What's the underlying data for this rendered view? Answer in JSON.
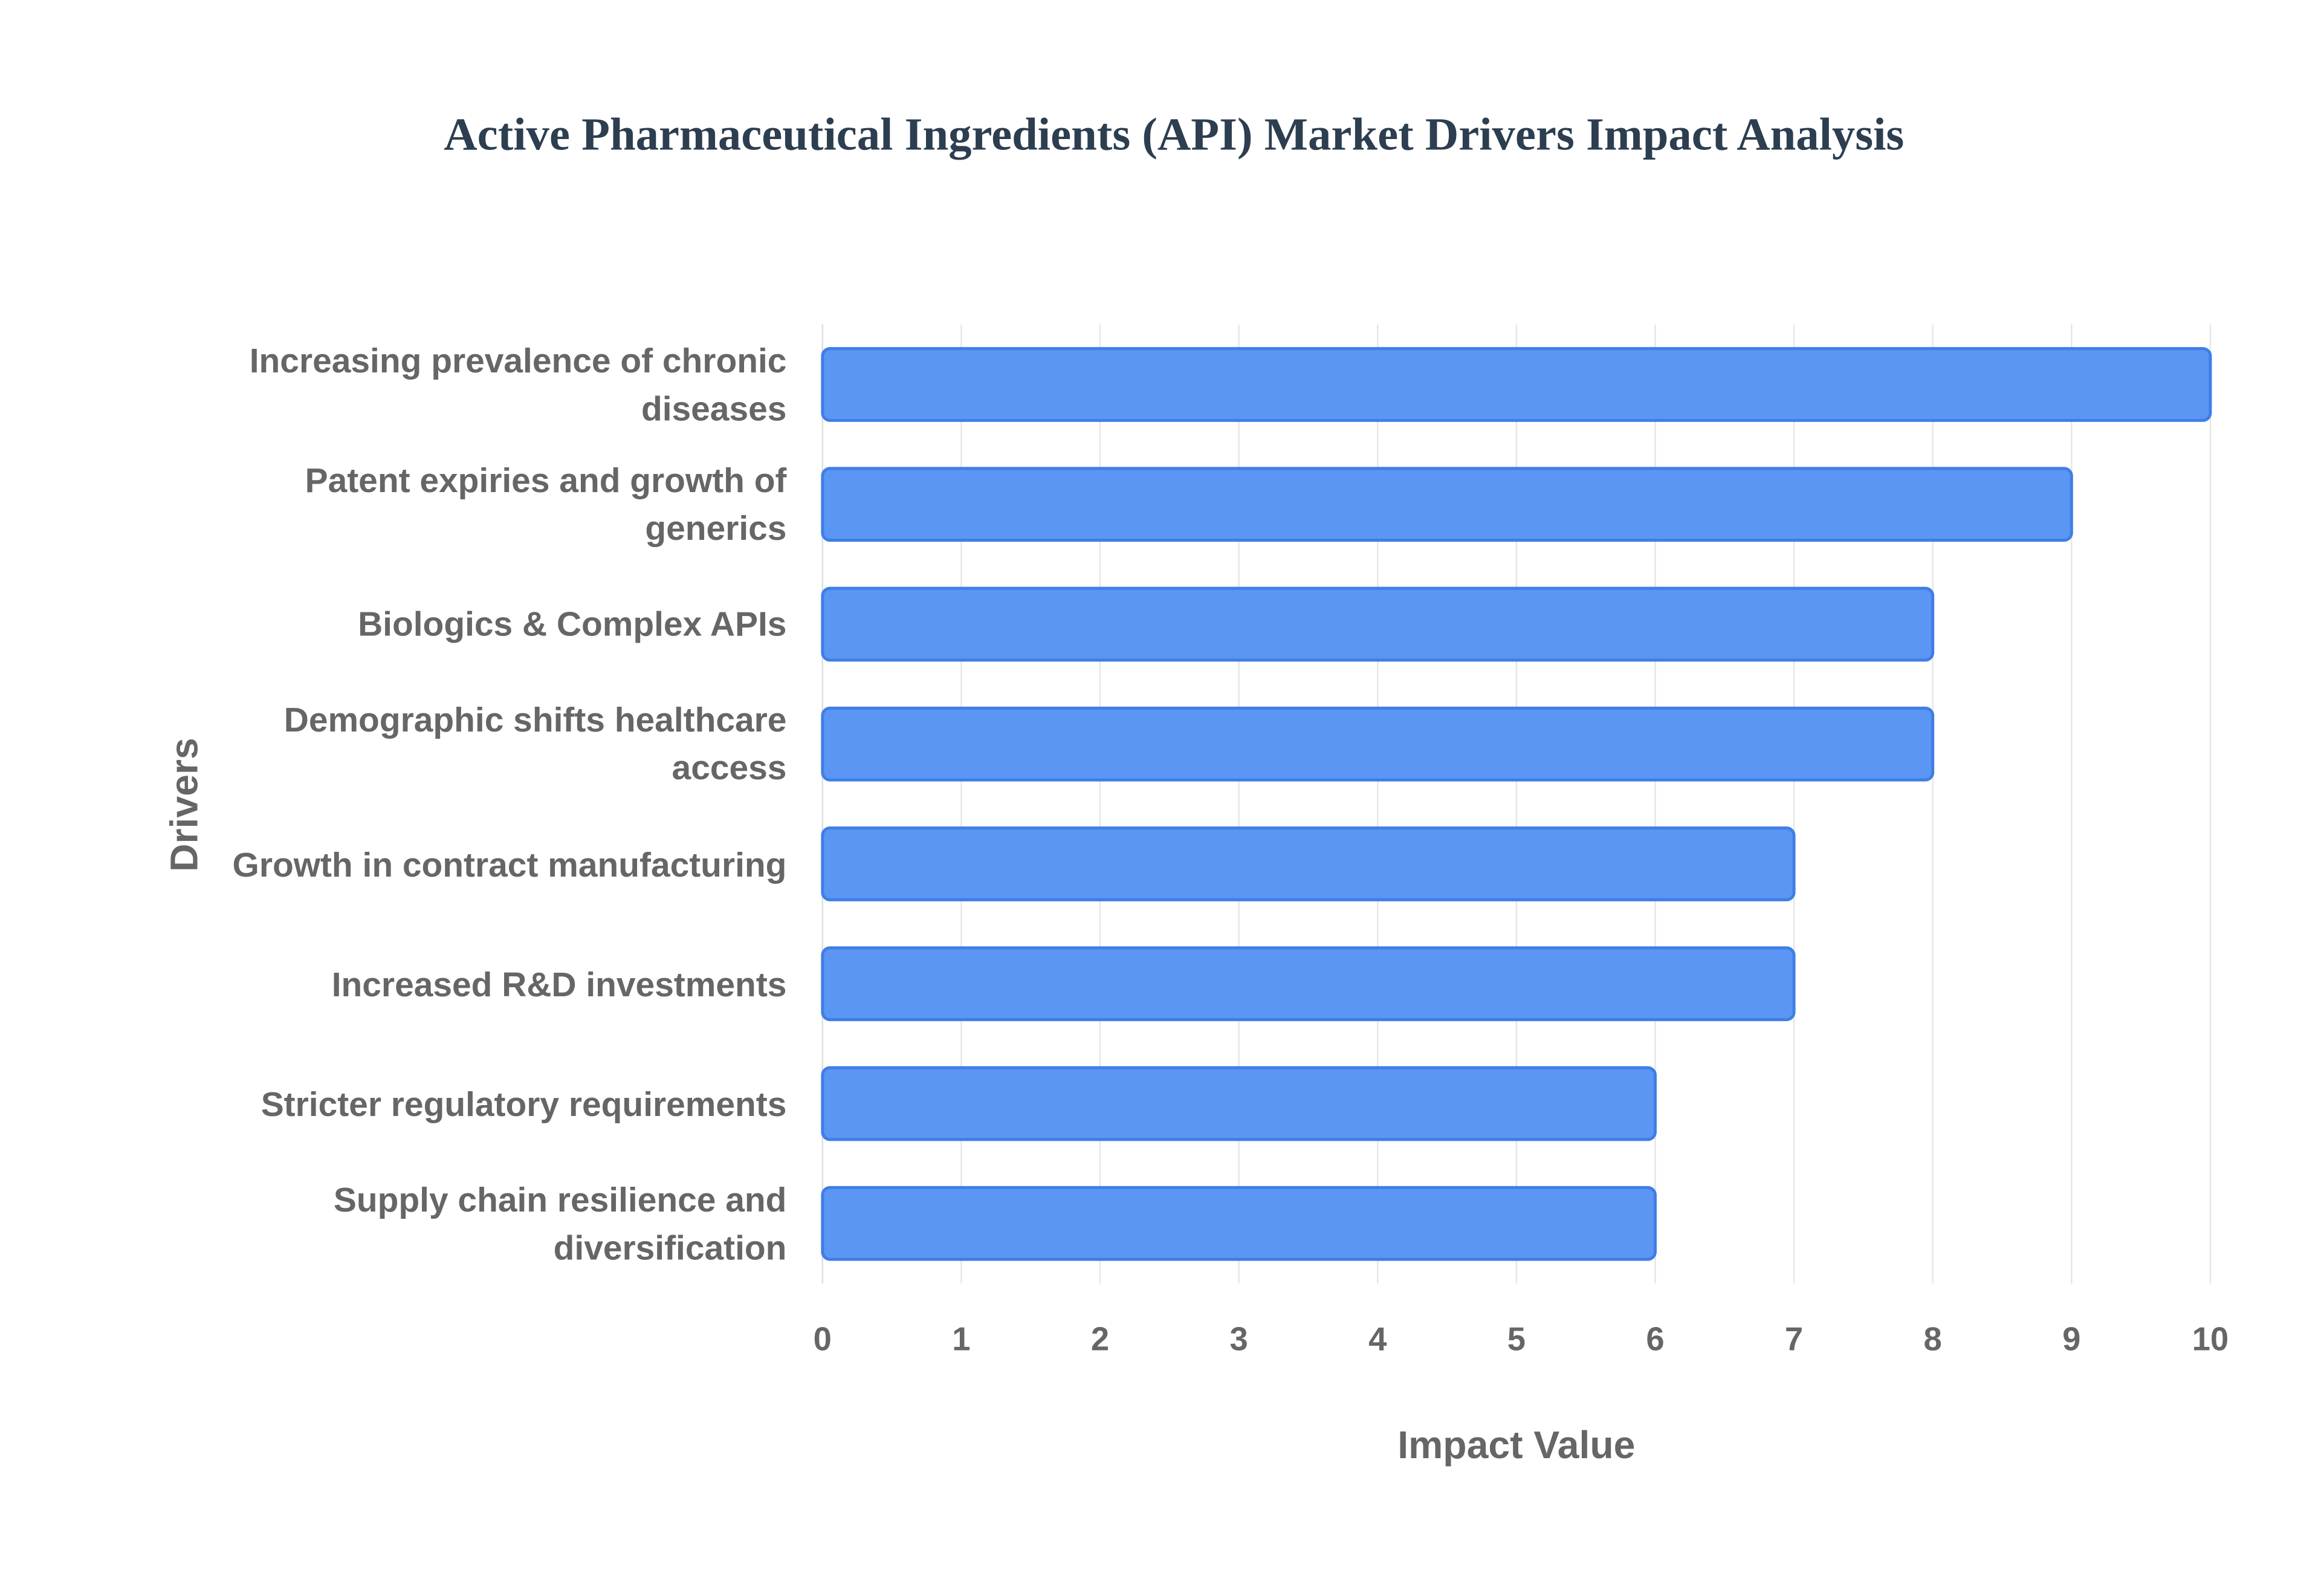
{
  "chart_data": {
    "type": "bar",
    "orientation": "horizontal",
    "title": "Active Pharmaceutical Ingredients (API) Market Drivers Impact Analysis",
    "x_label": "Impact Value",
    "y_label": "Drivers",
    "categories": [
      "Increasing prevalence of chronic diseases",
      "Patent expiries and growth of generics",
      "Biologics & Complex APIs",
      "Demographic shifts healthcare access",
      "Growth in contract manufacturing",
      "Increased R&D investments",
      "Stricter regulatory requirements",
      "Supply chain resilience and diversification"
    ],
    "values": [
      10,
      9,
      8,
      8,
      7,
      7,
      6,
      6
    ],
    "color": "#5b96f5",
    "xlim": [
      0,
      10
    ],
    "xticks": [
      0,
      1,
      2,
      3,
      4,
      5,
      6,
      7,
      8,
      9,
      10
    ],
    "grid": true
  }
}
